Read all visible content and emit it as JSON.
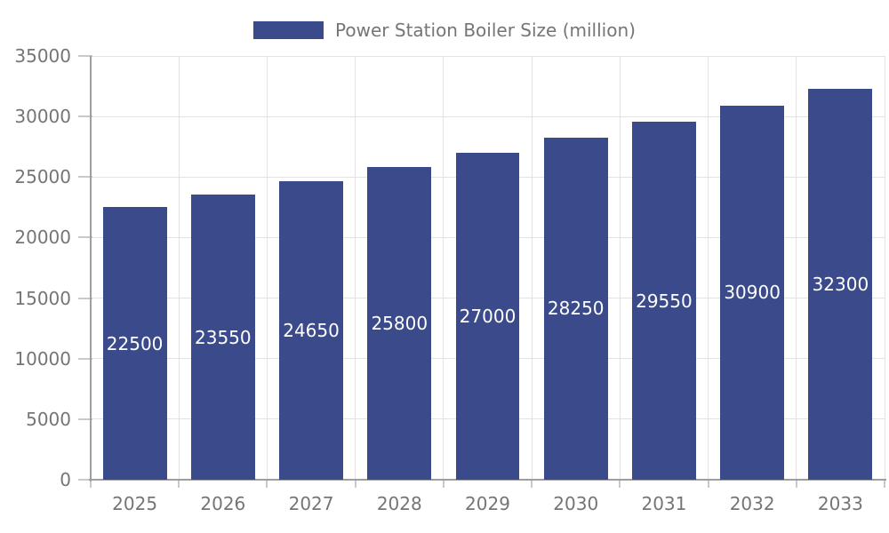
{
  "chart_data": {
    "type": "bar",
    "title": "",
    "legend": "Power Station Boiler Size (million)",
    "legend_position": "top-center",
    "categories": [
      "2025",
      "2026",
      "2027",
      "2028",
      "2029",
      "2030",
      "2031",
      "2032",
      "2033"
    ],
    "values": [
      22500,
      23550,
      24650,
      25800,
      27000,
      28250,
      29550,
      30900,
      32300
    ],
    "xlabel": "",
    "ylabel": "",
    "ylim": [
      0,
      35000
    ],
    "ytick_step": 5000,
    "ytick_labels": [
      "0",
      "5000",
      "10000",
      "15000",
      "20000",
      "25000",
      "30000",
      "35000"
    ],
    "grid": true,
    "bar_label_position": "inside-center",
    "colors": {
      "bar": "#3A4A8A",
      "bar_label": "#FFFFFF",
      "axis_text": "#757575",
      "legend_text": "#757575",
      "gridline": "#E3E3E3",
      "tick": "#C9C9C9",
      "axis_line": "#9E9E9E",
      "background": "#FFFFFF"
    }
  }
}
